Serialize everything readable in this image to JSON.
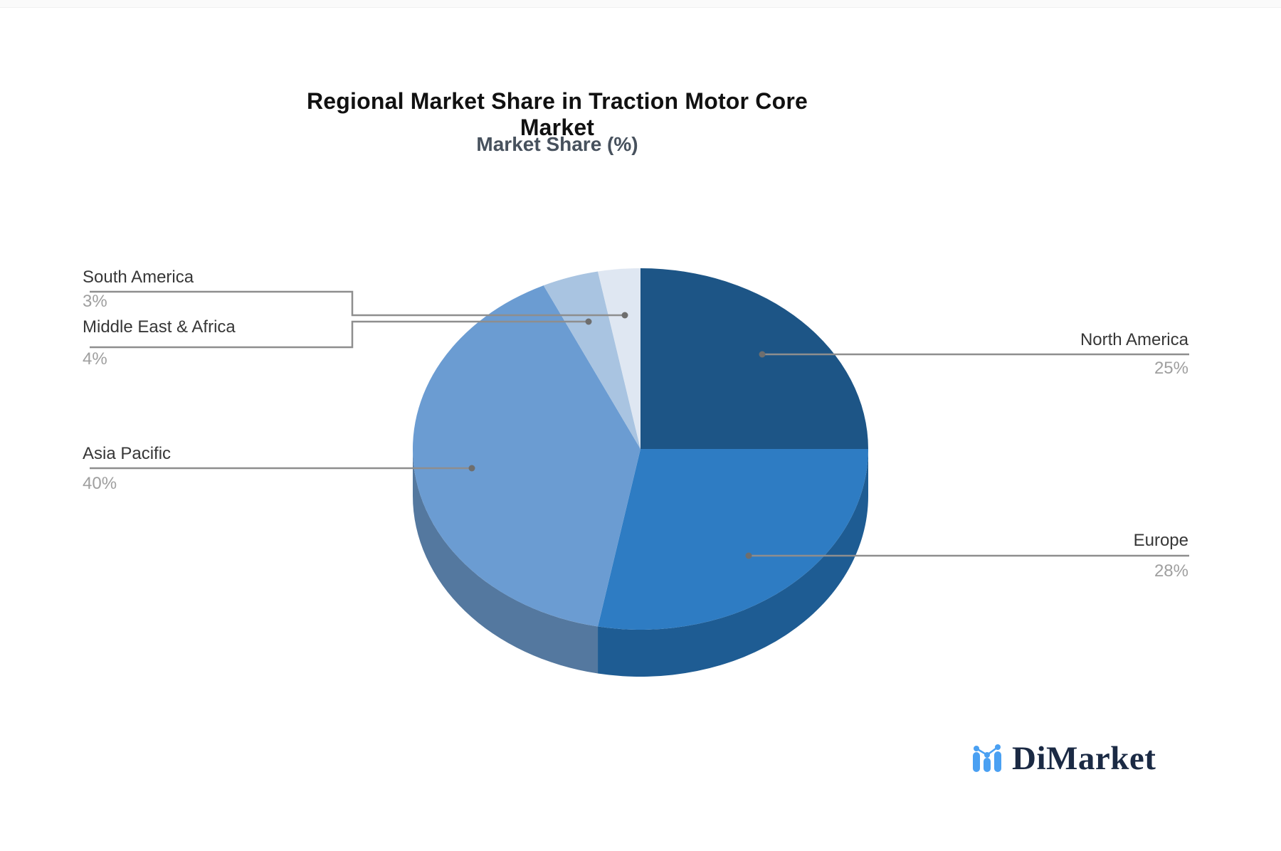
{
  "title": "Regional Market Share in Traction Motor Core Market",
  "subtitle": "Market Share (%)",
  "logo": {
    "text": "DiMarket",
    "icon": "bar-line-chart-icon",
    "text_color": "#1b2a44",
    "icon_color": "#4aa0f2"
  },
  "chart_data": {
    "type": "pie",
    "effect": "3d",
    "title": "Regional Market Share in Traction Motor Core Market",
    "subtitle": "Market Share (%)",
    "unit": "%",
    "start_angle_deg": 0,
    "direction": "clockwise",
    "legend": "none",
    "slices": [
      {
        "label": "North America",
        "value": 25,
        "pct_label": "25%",
        "color": "#1d5586",
        "side_color": "#174b76"
      },
      {
        "label": "Europe",
        "value": 28,
        "pct_label": "28%",
        "color": "#2e7cc3",
        "side_color": "#1e5c93"
      },
      {
        "label": "Asia Pacific",
        "value": 40,
        "pct_label": "40%",
        "color": "#6b9cd2",
        "side_color": "#54789f"
      },
      {
        "label": "Middle East & Africa",
        "value": 4,
        "pct_label": "4%",
        "color": "#a9c4e1",
        "side_color": "#8aa8c9"
      },
      {
        "label": "South America",
        "value": 3,
        "pct_label": "3%",
        "color": "#dfe7f2",
        "side_color": "#bcc9d9"
      }
    ],
    "callout_line_color": "#8e8e8e",
    "callout_dot_color": "#6e6e6e",
    "label_color": "#373737",
    "pct_color": "#9f9f9f"
  }
}
